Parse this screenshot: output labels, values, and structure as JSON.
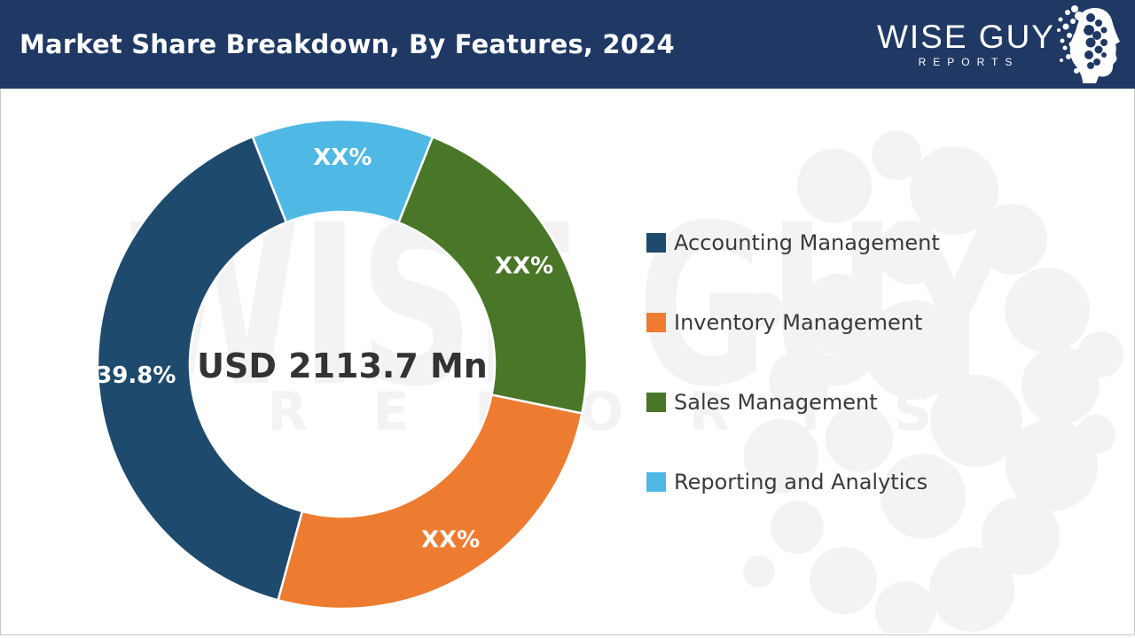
{
  "header": {
    "title": "Market Share Breakdown, By Features, 2024",
    "bg_color": "#1F3864",
    "logo": {
      "name_line": "WISE GUY",
      "sub_line": "REPORTS"
    }
  },
  "watermark": {
    "line1": "WISE GUY",
    "line2": "REPORTS"
  },
  "chart_data": {
    "type": "pie",
    "variant": "donut",
    "title": "Market Share Breakdown, By Features, 2024",
    "center_label": "USD 2113.7 Mn",
    "total_value_usd_mn": 2113.7,
    "segments": [
      {
        "label": "Accounting Management",
        "display_label": "39.8%",
        "value": 39.8,
        "color": "#1E4A6D"
      },
      {
        "label": "Inventory Management",
        "display_label": "XX%",
        "value": 26.0,
        "color": "#ED7C31"
      },
      {
        "label": "Sales Management",
        "display_label": "XX%",
        "value": 22.2,
        "color": "#4A7628"
      },
      {
        "label": "Reporting and Analytics",
        "display_label": "XX%",
        "value": 12.0,
        "color": "#4FB8E5"
      }
    ],
    "layout": {
      "start_angle_deg": 195.2,
      "draw_order": [
        0,
        3,
        2,
        1
      ],
      "legend_position": "right",
      "grid": false
    }
  }
}
